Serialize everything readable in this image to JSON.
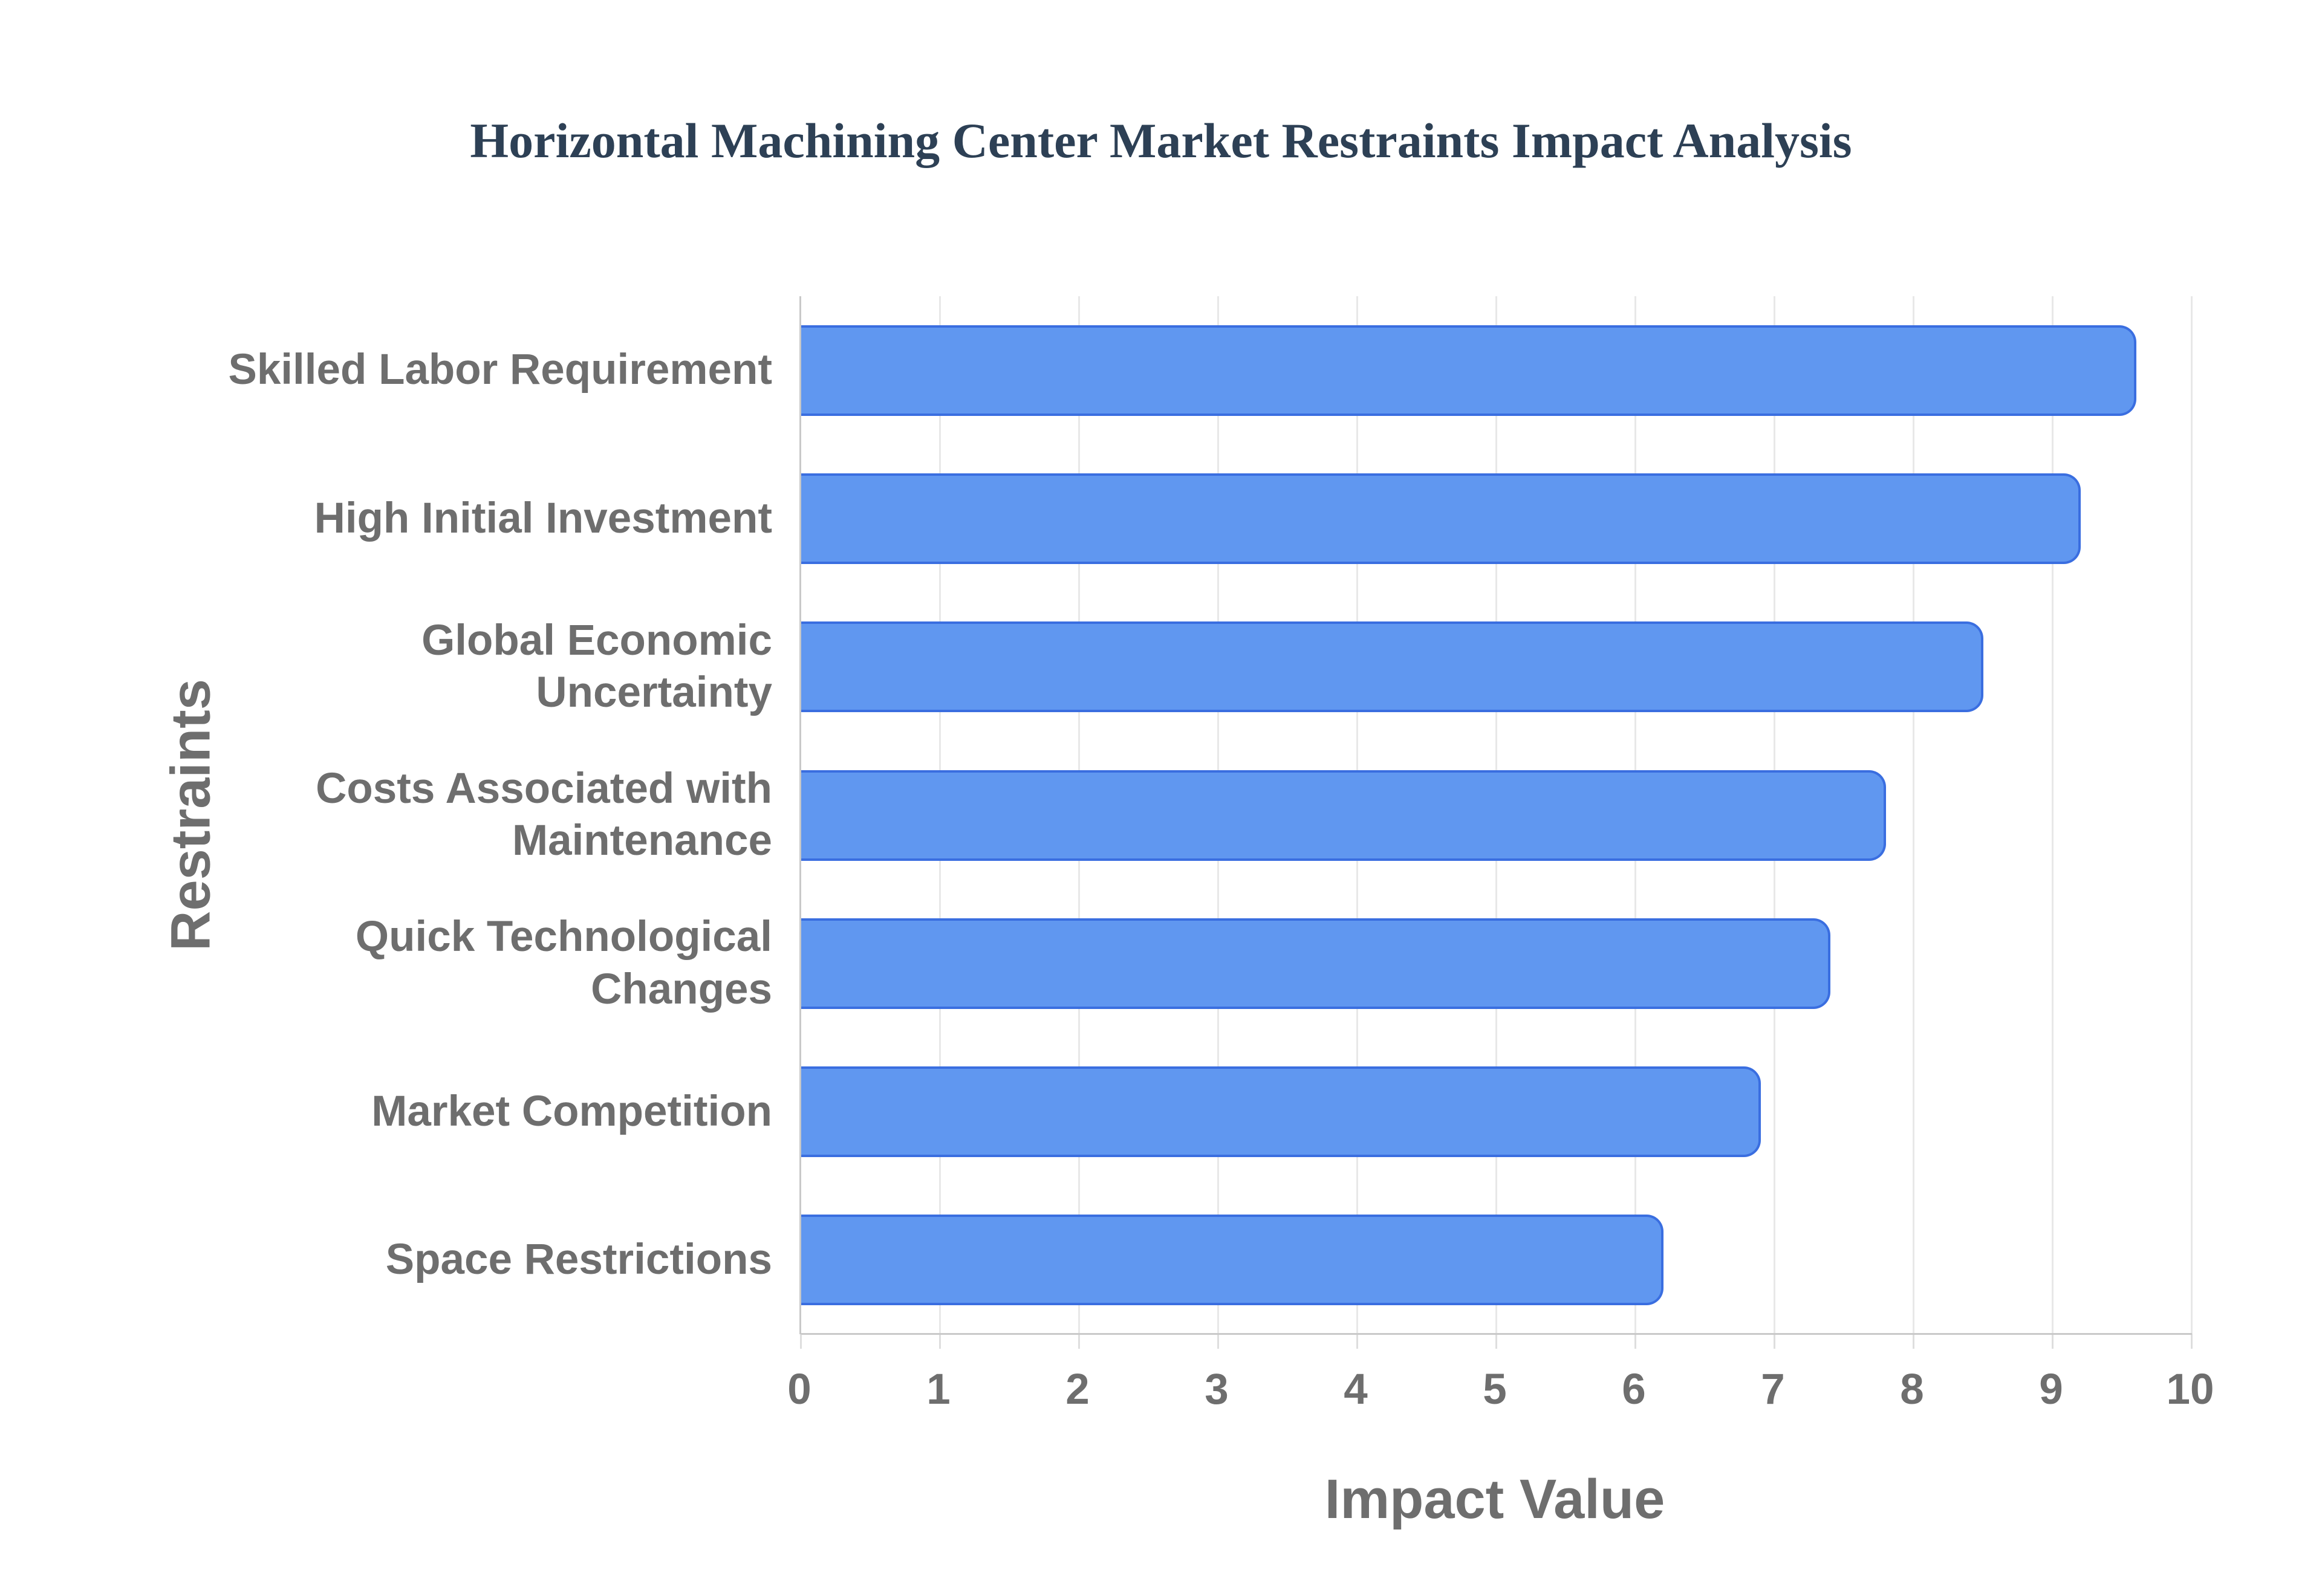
{
  "chart_data": {
    "type": "bar",
    "orientation": "horizontal",
    "title": "Horizontal Machining Center Market Restraints Impact Analysis",
    "categories": [
      "Skilled Labor Requirement",
      "High Initial Investment",
      "Global Economic Uncertainty",
      "Costs Associated with Maintenance",
      "Quick Technological Changes",
      "Market Competition",
      "Space Restrictions"
    ],
    "values": [
      9.6,
      9.2,
      8.5,
      7.8,
      7.4,
      6.9,
      6.2
    ],
    "xlabel": "Impact Value",
    "ylabel": "Restraints",
    "xlim": [
      0,
      10
    ],
    "xticks": [
      0,
      1,
      2,
      3,
      4,
      5,
      6,
      7,
      8,
      9,
      10
    ],
    "grid": true,
    "legend": false,
    "colors": {
      "bar_fill": "#6097f0",
      "bar_border": "#3a6ee0",
      "title_text": "#2d4055",
      "axis_text": "#6e6e6e",
      "gridline": "#e8e8e8",
      "axis_line": "#c9c9c9",
      "background": "#ffffff"
    }
  }
}
